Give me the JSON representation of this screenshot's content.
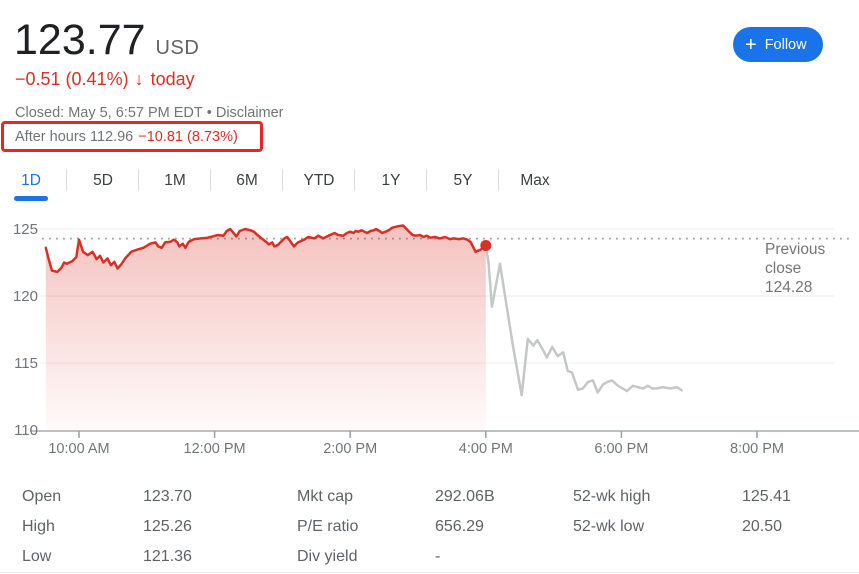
{
  "header": {
    "price": "123.77",
    "currency": "USD",
    "change": {
      "text": "−0.51 (0.41%)",
      "arrow": "↓",
      "period": "today"
    },
    "closed_text": "Closed: May 5, 6:57 PM EDT",
    "separator": "•",
    "disclaimer": "Disclaimer",
    "after_hours": {
      "label": "After hours",
      "price": "112.96",
      "change": "−10.81 (8.73%)"
    },
    "follow_button": {
      "icon": "+",
      "label": "Follow"
    },
    "accent_blue": "#1a73e8",
    "negative_red": "#d93025",
    "highlight_box_color": "#e7252b"
  },
  "tabs": [
    {
      "label": "1D",
      "active": true
    },
    {
      "label": "5D",
      "active": false
    },
    {
      "label": "1M",
      "active": false
    },
    {
      "label": "6M",
      "active": false
    },
    {
      "label": "YTD",
      "active": false
    },
    {
      "label": "1Y",
      "active": false
    },
    {
      "label": "5Y",
      "active": false
    },
    {
      "label": "Max",
      "active": false
    }
  ],
  "chart_data": {
    "type": "line",
    "title": "1D intraday price chart",
    "x_axis": {
      "unit": "hour of day",
      "range": [
        9.4,
        21.5
      ],
      "ticks": [
        {
          "t": 10,
          "label": "10:00 AM"
        },
        {
          "t": 12,
          "label": "12:00 PM"
        },
        {
          "t": 14,
          "label": "2:00 PM"
        },
        {
          "t": 16,
          "label": "4:00 PM"
        },
        {
          "t": 18,
          "label": "6:00 PM"
        },
        {
          "t": 20,
          "label": "8:00 PM"
        }
      ]
    },
    "y_axis": {
      "ticks": [
        110,
        115,
        120,
        125
      ],
      "range": [
        110,
        126.5
      ],
      "grid": true
    },
    "previous_close": {
      "value": 124.28,
      "label_lines": [
        "Previous",
        "close",
        "124.28"
      ]
    },
    "close_marker": {
      "t": 16.0,
      "price": 123.77
    },
    "series": [
      {
        "name": "regular_hours",
        "color": "#d93025",
        "fill": true,
        "points": [
          [
            9.51,
            123.6
          ],
          [
            9.55,
            122.8
          ],
          [
            9.6,
            121.9
          ],
          [
            9.68,
            121.8
          ],
          [
            9.74,
            122.1
          ],
          [
            9.78,
            122.5
          ],
          [
            9.82,
            122.4
          ],
          [
            9.9,
            122.6
          ],
          [
            9.96,
            122.9
          ],
          [
            10.0,
            124.2
          ],
          [
            10.06,
            123.3
          ],
          [
            10.13,
            123.05
          ],
          [
            10.2,
            123.3
          ],
          [
            10.26,
            122.75
          ],
          [
            10.31,
            123.0
          ],
          [
            10.36,
            122.5
          ],
          [
            10.42,
            122.8
          ],
          [
            10.47,
            122.3
          ],
          [
            10.52,
            122.55
          ],
          [
            10.57,
            122.05
          ],
          [
            10.63,
            122.4
          ],
          [
            10.68,
            122.8
          ],
          [
            10.77,
            123.3
          ],
          [
            10.85,
            123.45
          ],
          [
            10.95,
            123.6
          ],
          [
            11.05,
            123.9
          ],
          [
            11.13,
            124.0
          ],
          [
            11.17,
            123.7
          ],
          [
            11.22,
            123.6
          ],
          [
            11.27,
            124.0
          ],
          [
            11.35,
            124.05
          ],
          [
            11.4,
            124.2
          ],
          [
            11.45,
            124.0
          ],
          [
            11.48,
            123.7
          ],
          [
            11.53,
            123.9
          ],
          [
            11.57,
            123.6
          ],
          [
            11.62,
            124.05
          ],
          [
            11.7,
            124.25
          ],
          [
            11.8,
            124.3
          ],
          [
            11.9,
            124.35
          ],
          [
            12.05,
            124.55
          ],
          [
            12.13,
            124.5
          ],
          [
            12.18,
            124.85
          ],
          [
            12.23,
            125.0
          ],
          [
            12.28,
            124.7
          ],
          [
            12.32,
            124.45
          ],
          [
            12.37,
            124.85
          ],
          [
            12.45,
            125.0
          ],
          [
            12.53,
            124.9
          ],
          [
            12.58,
            124.8
          ],
          [
            12.63,
            124.55
          ],
          [
            12.72,
            124.2
          ],
          [
            12.77,
            124.0
          ],
          [
            12.8,
            123.85
          ],
          [
            12.85,
            124.0
          ],
          [
            12.88,
            123.7
          ],
          [
            12.93,
            123.8
          ],
          [
            12.97,
            124.0
          ],
          [
            13.03,
            124.3
          ],
          [
            13.07,
            124.4
          ],
          [
            13.1,
            124.2
          ],
          [
            13.17,
            123.7
          ],
          [
            13.23,
            124.0
          ],
          [
            13.32,
            124.2
          ],
          [
            13.38,
            124.4
          ],
          [
            13.47,
            124.3
          ],
          [
            13.53,
            124.5
          ],
          [
            13.6,
            124.3
          ],
          [
            13.68,
            124.5
          ],
          [
            13.77,
            124.7
          ],
          [
            13.82,
            124.55
          ],
          [
            13.9,
            124.5
          ],
          [
            13.95,
            124.7
          ],
          [
            14.0,
            124.8
          ],
          [
            14.05,
            124.7
          ],
          [
            14.08,
            124.85
          ],
          [
            14.12,
            124.8
          ],
          [
            14.17,
            124.9
          ],
          [
            14.21,
            124.8
          ],
          [
            14.25,
            124.7
          ],
          [
            14.3,
            124.85
          ],
          [
            14.35,
            124.9
          ],
          [
            14.38,
            125.0
          ],
          [
            14.43,
            124.85
          ],
          [
            14.47,
            124.7
          ],
          [
            14.52,
            124.8
          ],
          [
            14.57,
            124.9
          ],
          [
            14.62,
            125.1
          ],
          [
            14.7,
            125.2
          ],
          [
            14.78,
            125.26
          ],
          [
            14.82,
            125.05
          ],
          [
            14.87,
            124.8
          ],
          [
            14.92,
            124.55
          ],
          [
            14.97,
            124.5
          ],
          [
            15.03,
            124.55
          ],
          [
            15.08,
            124.4
          ],
          [
            15.13,
            124.5
          ],
          [
            15.18,
            124.35
          ],
          [
            15.25,
            124.4
          ],
          [
            15.32,
            124.3
          ],
          [
            15.4,
            124.4
          ],
          [
            15.47,
            124.25
          ],
          [
            15.53,
            124.3
          ],
          [
            15.6,
            124.25
          ],
          [
            15.67,
            124.3
          ],
          [
            15.73,
            124.2
          ],
          [
            15.78,
            124.0
          ],
          [
            15.85,
            123.3
          ],
          [
            15.92,
            123.45
          ],
          [
            16.0,
            123.77
          ]
        ]
      },
      {
        "name": "after_hours",
        "color": "#c4c7c5",
        "fill": false,
        "points": [
          [
            16.0,
            123.77
          ],
          [
            16.04,
            122.5
          ],
          [
            16.09,
            119.2
          ],
          [
            16.21,
            122.4
          ],
          [
            16.3,
            119.5
          ],
          [
            16.4,
            116.3
          ],
          [
            16.53,
            112.6
          ],
          [
            16.62,
            116.8
          ],
          [
            16.7,
            116.3
          ],
          [
            16.76,
            116.7
          ],
          [
            16.84,
            116.0
          ],
          [
            16.9,
            115.4
          ],
          [
            16.98,
            116.2
          ],
          [
            17.06,
            115.5
          ],
          [
            17.14,
            115.8
          ],
          [
            17.21,
            114.4
          ],
          [
            17.27,
            114.3
          ],
          [
            17.36,
            113.0
          ],
          [
            17.43,
            113.1
          ],
          [
            17.51,
            113.6
          ],
          [
            17.58,
            113.7
          ],
          [
            17.65,
            112.8
          ],
          [
            17.73,
            113.4
          ],
          [
            17.8,
            113.6
          ],
          [
            17.86,
            113.7
          ],
          [
            17.95,
            113.3
          ],
          [
            18.02,
            113.1
          ],
          [
            18.08,
            112.9
          ],
          [
            18.17,
            113.3
          ],
          [
            18.24,
            113.2
          ],
          [
            18.32,
            113.1
          ],
          [
            18.39,
            113.3
          ],
          [
            18.46,
            113.1
          ],
          [
            18.52,
            113.1
          ],
          [
            18.61,
            113.2
          ],
          [
            18.72,
            113.1
          ],
          [
            18.82,
            113.2
          ],
          [
            18.89,
            112.96
          ]
        ]
      }
    ]
  },
  "stats": {
    "columns": [
      {
        "rows": [
          {
            "label": "Open",
            "value": "123.70"
          },
          {
            "label": "High",
            "value": "125.26"
          },
          {
            "label": "Low",
            "value": "121.36"
          }
        ]
      },
      {
        "rows": [
          {
            "label": "Mkt cap",
            "value": "292.06B"
          },
          {
            "label": "P/E ratio",
            "value": "656.29"
          },
          {
            "label": "Div yield",
            "value": "-"
          }
        ]
      },
      {
        "rows": [
          {
            "label": "52-wk high",
            "value": "125.41"
          },
          {
            "label": "52-wk low",
            "value": "20.50"
          }
        ]
      }
    ]
  }
}
